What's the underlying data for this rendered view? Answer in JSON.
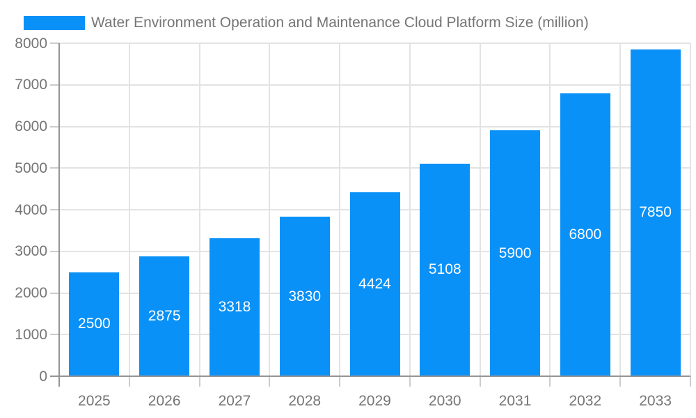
{
  "chart_data": {
    "type": "bar",
    "title": "Water Environment Operation and Maintenance Cloud Platform Size (million)",
    "legend": {
      "position": "top-left",
      "entries": [
        "Water Environment Operation and Maintenance Cloud Platform Size (million)"
      ]
    },
    "categories": [
      "2025",
      "2026",
      "2027",
      "2028",
      "2029",
      "2030",
      "2031",
      "2032",
      "2033"
    ],
    "values": [
      2500,
      2875,
      3318,
      3830,
      4424,
      5108,
      5900,
      6800,
      7850
    ],
    "xlabel": "",
    "ylabel": "",
    "ylim": [
      0,
      8000
    ],
    "ytick_step": 1000,
    "ytick_labels": [
      "0",
      "1000",
      "2000",
      "3000",
      "4000",
      "5000",
      "6000",
      "7000",
      "8000"
    ],
    "grid": true,
    "colors": {
      "bar": "#0991F8",
      "bar_value_text": "#FFFFFF",
      "axis_text": "#757575",
      "grid_line": "#E3E3E3",
      "axis_line": "#949494",
      "tick_line": "#CCCCCC",
      "background": "#FFFFFF"
    }
  }
}
